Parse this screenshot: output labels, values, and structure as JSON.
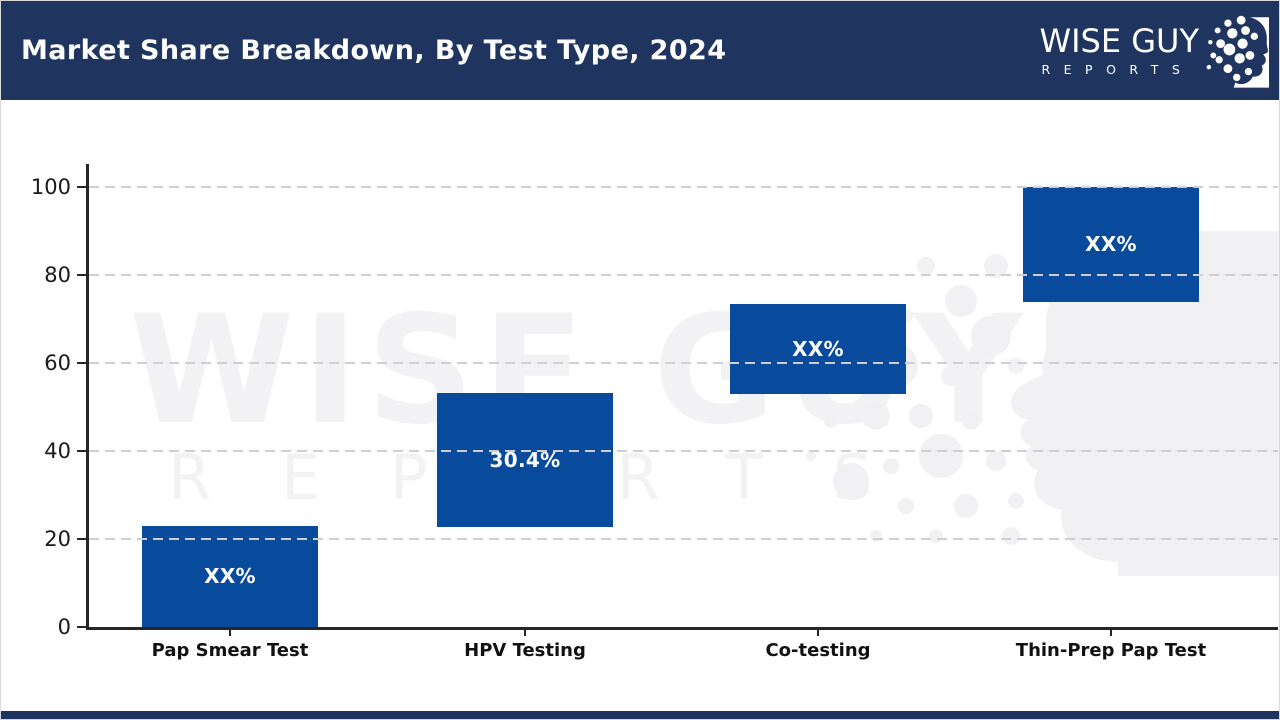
{
  "header": {
    "title": "Market Share Breakdown, By Test Type, 2024",
    "bg_color": "#1f3560",
    "logo": {
      "brand": "WISE GUY",
      "sub": "REPORTS"
    }
  },
  "watermark": {
    "brand": "WISE GUY",
    "sub": "REPORTS"
  },
  "chart_data": {
    "type": "bar",
    "subtype": "waterfall-breakdown",
    "title": "Market Share Breakdown, By Test Type, 2024",
    "categories": [
      "Pap Smear Test",
      "HPV Testing",
      "Co-testing",
      "Thin-Prep Pap Test"
    ],
    "bars": [
      {
        "category": "Pap Smear Test",
        "start": 0,
        "end": 23,
        "label": "XX%"
      },
      {
        "category": "HPV Testing",
        "start": 22.7,
        "end": 53.1,
        "label": "30.4%"
      },
      {
        "category": "Co-testing",
        "start": 53,
        "end": 73.4,
        "label": "XX%"
      },
      {
        "category": "Thin-Prep Pap Test",
        "start": 73.9,
        "end": 100,
        "label": "XX%"
      }
    ],
    "xlabel": "",
    "ylabel": "",
    "ylim": [
      0,
      100
    ],
    "yticks": [
      0,
      20,
      40,
      60,
      80,
      100
    ],
    "grid": "horizontal-dashed",
    "legend": "none",
    "bar_color": "#084a9c",
    "bar_label_color": "#ffffff",
    "footer_bar_color": "#1f3560"
  }
}
